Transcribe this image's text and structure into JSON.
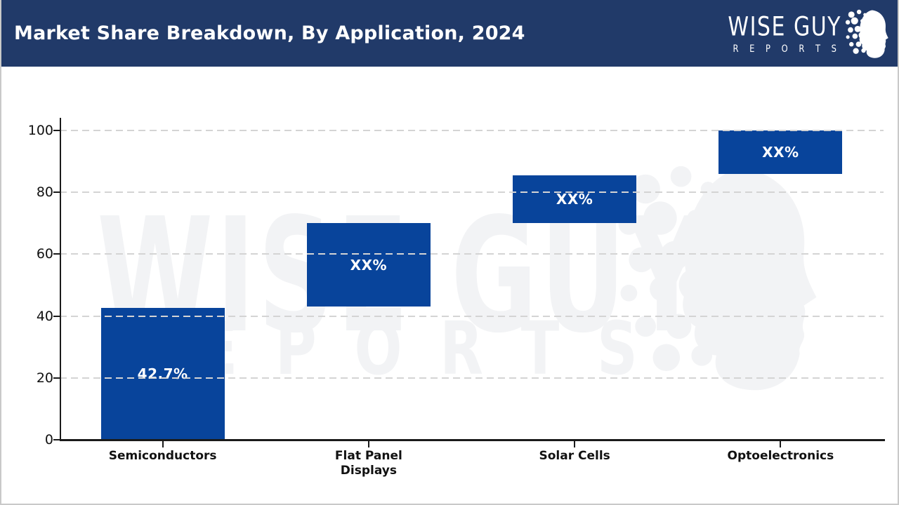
{
  "header": {
    "title": "Market Share Breakdown, By Application, 2024",
    "background_color": "#213a69",
    "text_color": "#ffffff"
  },
  "logo": {
    "line1": "WISE GUY",
    "line2": "R E P O R T S",
    "face_icon": "dotted-head-profile"
  },
  "watermark": {
    "line1": "WISE GUY",
    "line2": "R E P O R T S",
    "face_icon": "dotted-head-profile",
    "color": "#f2f3f5"
  },
  "chart_data": {
    "type": "bar",
    "subtype": "waterfall",
    "title": "Market Share Breakdown, By Application, 2024",
    "categories": [
      "Semiconductors",
      "Flat Panel Displays",
      "Solar Cells",
      "Optoelectronics"
    ],
    "segments": [
      {
        "category": "Semiconductors",
        "start": 0,
        "end": 42.7,
        "label": "42.7%"
      },
      {
        "category": "Flat Panel Displays",
        "start": 43,
        "end": 70,
        "label": "XX%"
      },
      {
        "category": "Solar Cells",
        "start": 70,
        "end": 85.5,
        "label": "XX%"
      },
      {
        "category": "Optoelectronics",
        "start": 86,
        "end": 100,
        "label": "XX%"
      }
    ],
    "xlabel": "",
    "ylabel": "",
    "y_ticks": [
      0,
      20,
      40,
      60,
      80,
      100
    ],
    "ylim": [
      0,
      105
    ],
    "grid": "horizontal-dashed",
    "grid_color": "#d4d4d4",
    "bar_color": "#08449b",
    "bar_label_color": "#ffffff",
    "axis_color": "#1a1a1a",
    "legend": "none"
  }
}
